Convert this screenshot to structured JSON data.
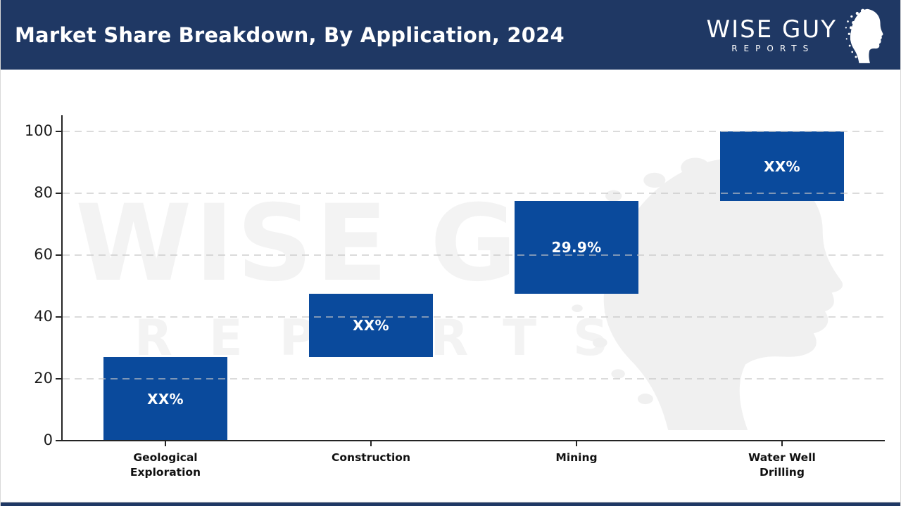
{
  "header": {
    "title": "Market Share Breakdown, By Application, 2024",
    "logo": {
      "line1": "WISE GUY",
      "line2": "REPORTS"
    }
  },
  "watermark": {
    "line1": "WISE GUY",
    "line2": "REPORTS"
  },
  "colors": {
    "header_bg": "#1f3864",
    "bar": "#0a4a9c",
    "grid": "#c5c5c5",
    "axis": "#242424",
    "bar_label": "#ffffff",
    "watermark": "#f3f3f3"
  },
  "chart_data": {
    "type": "bar",
    "variant": "waterfall",
    "title": "Market Share Breakdown, By Application, 2024",
    "categories": [
      "Geological Exploration",
      "Construction",
      "Mining",
      "Water Well Drilling"
    ],
    "category_label_lines": [
      [
        "Geological",
        "Exploration"
      ],
      [
        "Construction"
      ],
      [
        "Mining"
      ],
      [
        "Water Well",
        "Drilling"
      ]
    ],
    "series": [
      {
        "name": "Market Share (%)",
        "segments": [
          {
            "category": "Geological Exploration",
            "start": 0,
            "end": 27,
            "value": 27,
            "label": "XX%"
          },
          {
            "category": "Construction",
            "start": 27,
            "end": 47.5,
            "value": 20.5,
            "label": "XX%"
          },
          {
            "category": "Mining",
            "start": 47.5,
            "end": 77.4,
            "value": 29.9,
            "label": "29.9%"
          },
          {
            "category": "Water Well Drilling",
            "start": 77.4,
            "end": 100,
            "value": 22.6,
            "label": "XX%"
          }
        ]
      }
    ],
    "yticks": [
      0,
      20,
      40,
      60,
      80,
      100
    ],
    "ylim": [
      0,
      105
    ],
    "xlabel": "",
    "ylabel": "",
    "grid": {
      "horizontal": true,
      "style": "dashed",
      "above_bars": true
    },
    "legend": "none",
    "bar_color": "#0a4a9c",
    "bar_label_color": "#ffffff"
  }
}
